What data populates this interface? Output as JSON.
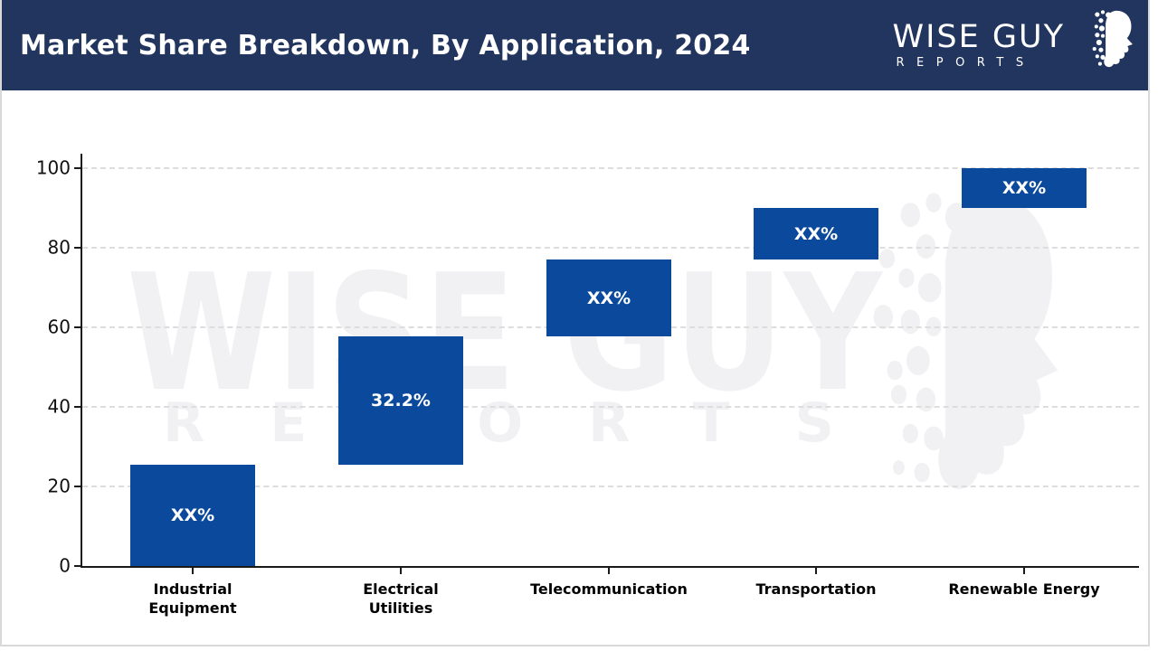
{
  "header": {
    "title": "Market Share Breakdown, By Application, 2024",
    "logo": {
      "line1": "WISE GUY",
      "line2": "REPORTS"
    }
  },
  "watermark": {
    "line1": "WISE GUY",
    "line2": "REPORTS"
  },
  "colors": {
    "header_bg": "#22355F",
    "bar": "#0B499D",
    "grid": "#DDDDDD",
    "axis": "#1A1A1A",
    "bar_label": "#FFFFFF",
    "watermark": "#F1F1F4"
  },
  "chart_data": {
    "type": "bar",
    "subtype": "waterfall",
    "title": "Market Share Breakdown, By Application, 2024",
    "xlabel": "",
    "ylabel": "",
    "ylim": [
      0,
      105
    ],
    "yticks": [
      0,
      20,
      40,
      60,
      80,
      100
    ],
    "grid": "horizontal-dashed",
    "legend": "none",
    "categories": [
      "Industrial Equipment",
      "Electrical Utilities",
      "Telecommunication",
      "Transportation",
      "Renewable Energy"
    ],
    "category_lines": [
      [
        "Industrial",
        "Equipment"
      ],
      [
        "Electrical",
        "Utilities"
      ],
      [
        "Telecommunication"
      ],
      [
        "Transportation"
      ],
      [
        "Renewable Energy"
      ]
    ],
    "series": [
      {
        "name": "Market Share",
        "segments": [
          {
            "category": "Industrial Equipment",
            "start": 0,
            "end": 25.5,
            "value_label": "XX%"
          },
          {
            "category": "Electrical Utilities",
            "start": 25.5,
            "end": 57.7,
            "value_label": "32.2%"
          },
          {
            "category": "Telecommunication",
            "start": 57.7,
            "end": 77.0,
            "value_label": "XX%"
          },
          {
            "category": "Transportation",
            "start": 77.0,
            "end": 90.0,
            "value_label": "XX%"
          },
          {
            "category": "Renewable Energy",
            "start": 90.0,
            "end": 100.0,
            "value_label": "XX%"
          }
        ]
      }
    ]
  }
}
